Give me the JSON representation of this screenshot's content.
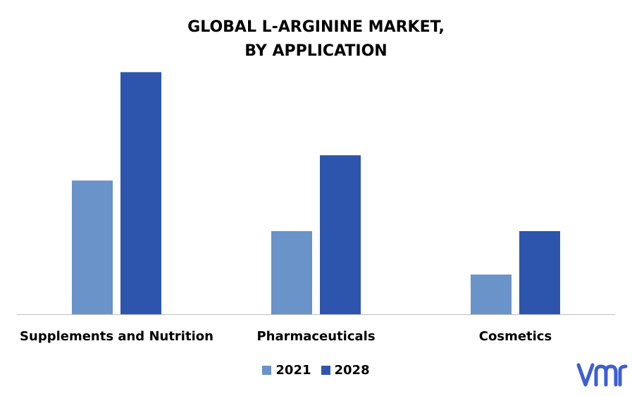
{
  "chart_data": {
    "type": "bar",
    "title_lines": [
      "GLOBAL L-ARGININE MARKET,",
      "BY APPLICATION"
    ],
    "categories": [
      "Supplements and Nutrition",
      "Pharmaceuticals",
      "Cosmetics"
    ],
    "series": [
      {
        "name": "2021",
        "color": "#6a93c9",
        "values": [
          3.7,
          2.3,
          1.1
        ]
      },
      {
        "name": "2028",
        "color": "#2e55ad",
        "values": [
          6.7,
          4.4,
          2.3
        ]
      }
    ],
    "ylim": [
      0,
      7
    ],
    "grid": false,
    "legend_position": "bottom-center"
  },
  "brand": {
    "logo_text": "vmr",
    "logo_color": "#3d5ed6"
  }
}
